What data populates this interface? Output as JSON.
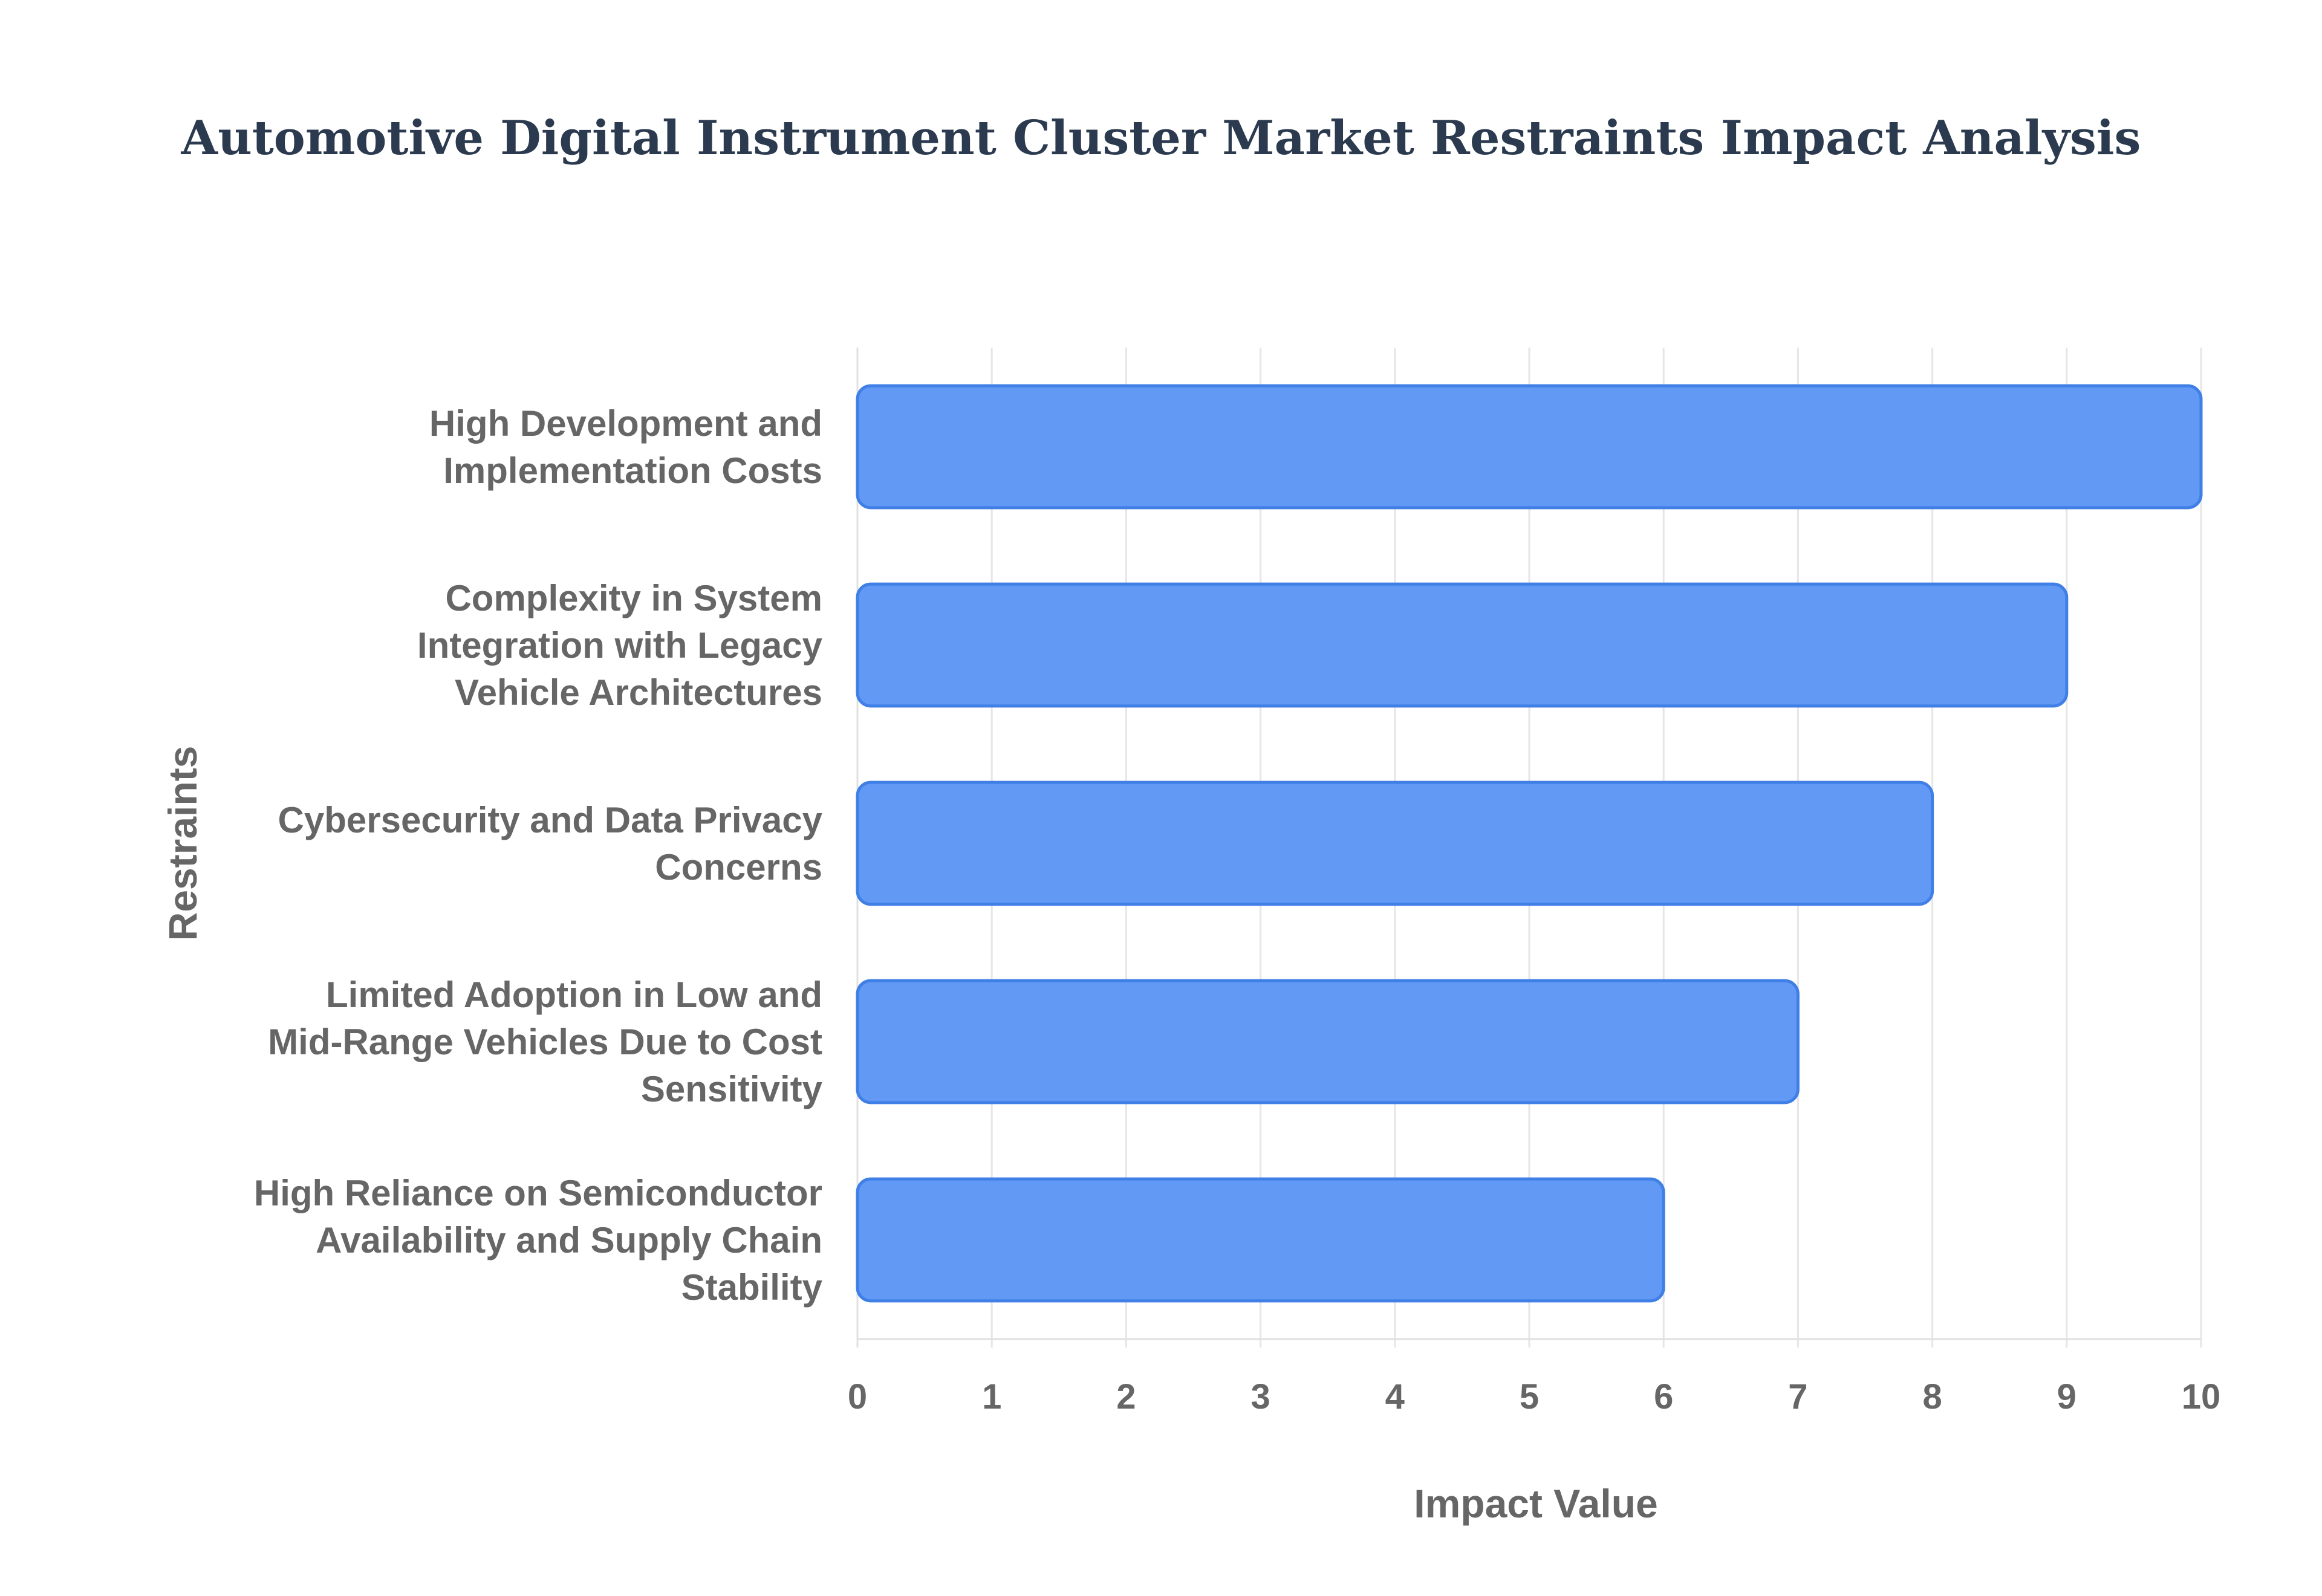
{
  "chart_data": {
    "type": "bar",
    "orientation": "horizontal",
    "title": "Automotive Digital Instrument Cluster Market Restraints Impact Analysis",
    "xlabel": "Impact Value",
    "ylabel": "Restraints",
    "xlim": [
      0,
      10
    ],
    "x_ticks": [
      "0",
      "1",
      "2",
      "3",
      "4",
      "5",
      "6",
      "7",
      "8",
      "9",
      "10"
    ],
    "grid": true,
    "categories": [
      [
        "High Development and",
        "Implementation Costs"
      ],
      [
        "Complexity in System",
        "Integration with Legacy",
        "Vehicle Architectures"
      ],
      [
        "Cybersecurity and Data Privacy",
        "Concerns"
      ],
      [
        "Limited Adoption in Low and",
        "Mid-Range Vehicles Due to Cost",
        "Sensitivity"
      ],
      [
        "High Reliance on Semiconductor",
        "Availability and Supply Chain",
        "Stability"
      ]
    ],
    "values": [
      10,
      9,
      8,
      7,
      6
    ],
    "colors": {
      "bar_fill": "#6199f4",
      "bar_stroke": "#3f7fe6",
      "title": "#2b3a4f",
      "text": "#666666",
      "grid": "#e6e6e6"
    }
  }
}
